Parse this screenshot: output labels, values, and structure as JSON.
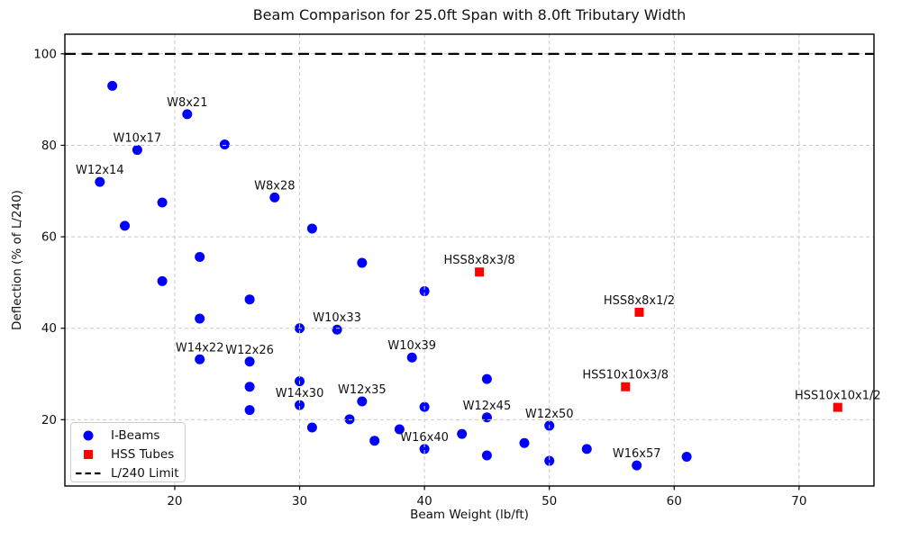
{
  "chart_data": {
    "type": "scatter",
    "title": "Beam Comparison for 25.0ft Span with 8.0ft Tributary Width",
    "xlabel": "Beam Weight (lb/ft)",
    "ylabel": "Deflection (% of L/240)",
    "xlim": [
      11.2,
      76.0
    ],
    "ylim": [
      5.5,
      104.3
    ],
    "x_ticks": [
      20,
      30,
      40,
      50,
      60,
      70
    ],
    "y_ticks": [
      20,
      40,
      60,
      80,
      100
    ],
    "grid": true,
    "grid_color": "#cbcbcb",
    "legend_position": "lower left",
    "series": [
      {
        "name": "I-Beams",
        "marker": "circle",
        "color": "#0000ff",
        "points": [
          {
            "x": 14,
            "y": 72.0,
            "label": "W12x14"
          },
          {
            "x": 15,
            "y": 93.0,
            "label": ""
          },
          {
            "x": 16,
            "y": 62.4,
            "label": ""
          },
          {
            "x": 17,
            "y": 79.0,
            "label": "W10x17"
          },
          {
            "x": 19,
            "y": 67.5,
            "label": ""
          },
          {
            "x": 19,
            "y": 50.3,
            "label": ""
          },
          {
            "x": 21,
            "y": 86.8,
            "label": "W8x21"
          },
          {
            "x": 22,
            "y": 55.6,
            "label": ""
          },
          {
            "x": 22,
            "y": 42.1,
            "label": ""
          },
          {
            "x": 22,
            "y": 33.2,
            "label": "W14x22"
          },
          {
            "x": 24,
            "y": 80.2,
            "label": ""
          },
          {
            "x": 26,
            "y": 46.3,
            "label": ""
          },
          {
            "x": 26,
            "y": 32.7,
            "label": "W12x26"
          },
          {
            "x": 26,
            "y": 27.2,
            "label": ""
          },
          {
            "x": 26,
            "y": 22.1,
            "label": ""
          },
          {
            "x": 28,
            "y": 68.6,
            "label": "W8x28"
          },
          {
            "x": 30,
            "y": 40.0,
            "label": ""
          },
          {
            "x": 30,
            "y": 28.4,
            "label": ""
          },
          {
            "x": 30,
            "y": 23.2,
            "label": "W14x30"
          },
          {
            "x": 31,
            "y": 61.8,
            "label": ""
          },
          {
            "x": 31,
            "y": 18.3,
            "label": ""
          },
          {
            "x": 33,
            "y": 39.7,
            "label": "W10x33"
          },
          {
            "x": 34,
            "y": 20.1,
            "label": ""
          },
          {
            "x": 35,
            "y": 54.3,
            "label": ""
          },
          {
            "x": 35,
            "y": 24.0,
            "label": "W12x35"
          },
          {
            "x": 36,
            "y": 15.4,
            "label": ""
          },
          {
            "x": 38,
            "y": 17.9,
            "label": ""
          },
          {
            "x": 39,
            "y": 33.6,
            "label": "W10x39"
          },
          {
            "x": 40,
            "y": 48.1,
            "label": ""
          },
          {
            "x": 40,
            "y": 22.8,
            "label": ""
          },
          {
            "x": 40,
            "y": 13.6,
            "label": "W16x40"
          },
          {
            "x": 43,
            "y": 16.9,
            "label": ""
          },
          {
            "x": 45,
            "y": 28.9,
            "label": ""
          },
          {
            "x": 45,
            "y": 20.5,
            "label": "W12x45"
          },
          {
            "x": 45,
            "y": 12.2,
            "label": ""
          },
          {
            "x": 48,
            "y": 14.9,
            "label": ""
          },
          {
            "x": 50,
            "y": 18.7,
            "label": "W12x50"
          },
          {
            "x": 50,
            "y": 11.0,
            "label": ""
          },
          {
            "x": 53,
            "y": 13.6,
            "label": ""
          },
          {
            "x": 57,
            "y": 10.0,
            "label": "W16x57"
          },
          {
            "x": 61,
            "y": 11.9,
            "label": ""
          }
        ]
      },
      {
        "name": "HSS Tubes",
        "marker": "square",
        "color": "#ff0000",
        "points": [
          {
            "x": 44.4,
            "y": 52.3,
            "label": "HSS8x8x3/8"
          },
          {
            "x": 57.2,
            "y": 43.5,
            "label": "HSS8x8x1/2"
          },
          {
            "x": 56.1,
            "y": 27.2,
            "label": "HSS10x10x3/8"
          },
          {
            "x": 73.1,
            "y": 22.7,
            "label": "HSS10x10x1/2"
          }
        ]
      }
    ],
    "limit_line": {
      "name": "L/240 Limit",
      "y": 100,
      "color": "#000000",
      "style": "dashed"
    }
  }
}
